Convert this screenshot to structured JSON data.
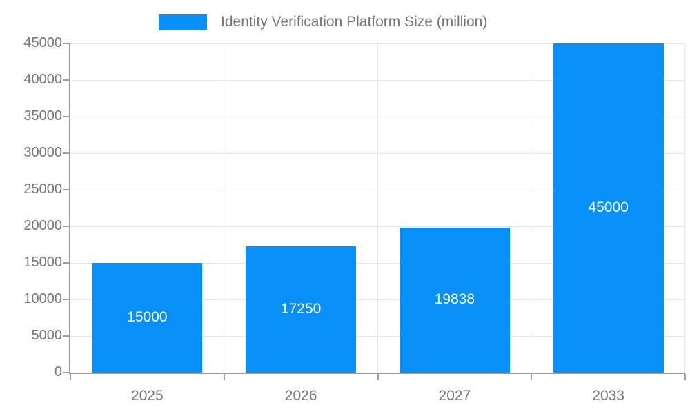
{
  "chart_data": {
    "type": "bar",
    "title": "Identity Verification Platform Size (million)",
    "categories": [
      "2025",
      "2026",
      "2027",
      "2033"
    ],
    "series": [
      {
        "name": "Identity Verification Platform Size (million)",
        "values": [
          15000,
          17250,
          19838,
          45000
        ],
        "value_labels": [
          "15000",
          "17250",
          "19838",
          "45000"
        ],
        "color": "#0890f8"
      }
    ],
    "xlabel": "",
    "ylabel": "",
    "ylim": [
      0,
      45000
    ],
    "ytick_step": 5000,
    "ytick_labels": [
      "0",
      "5000",
      "10000",
      "15000",
      "20000",
      "25000",
      "30000",
      "35000",
      "40000",
      "45000"
    ],
    "grid": {
      "horizontal": true,
      "vertical_category_boundaries": true
    },
    "legend_position": "top-center",
    "bar_value_label_position": "center-of-bar",
    "colors": {
      "bar": "#0890f8",
      "bar_value_text": "#ffffff",
      "tick_text": "#757575",
      "legend_text": "#757575",
      "axis_line": "#9e9e9e",
      "tick_mark": "#9e9e9e",
      "gridline": "#e4e4e4",
      "background": "#ffffff"
    }
  }
}
